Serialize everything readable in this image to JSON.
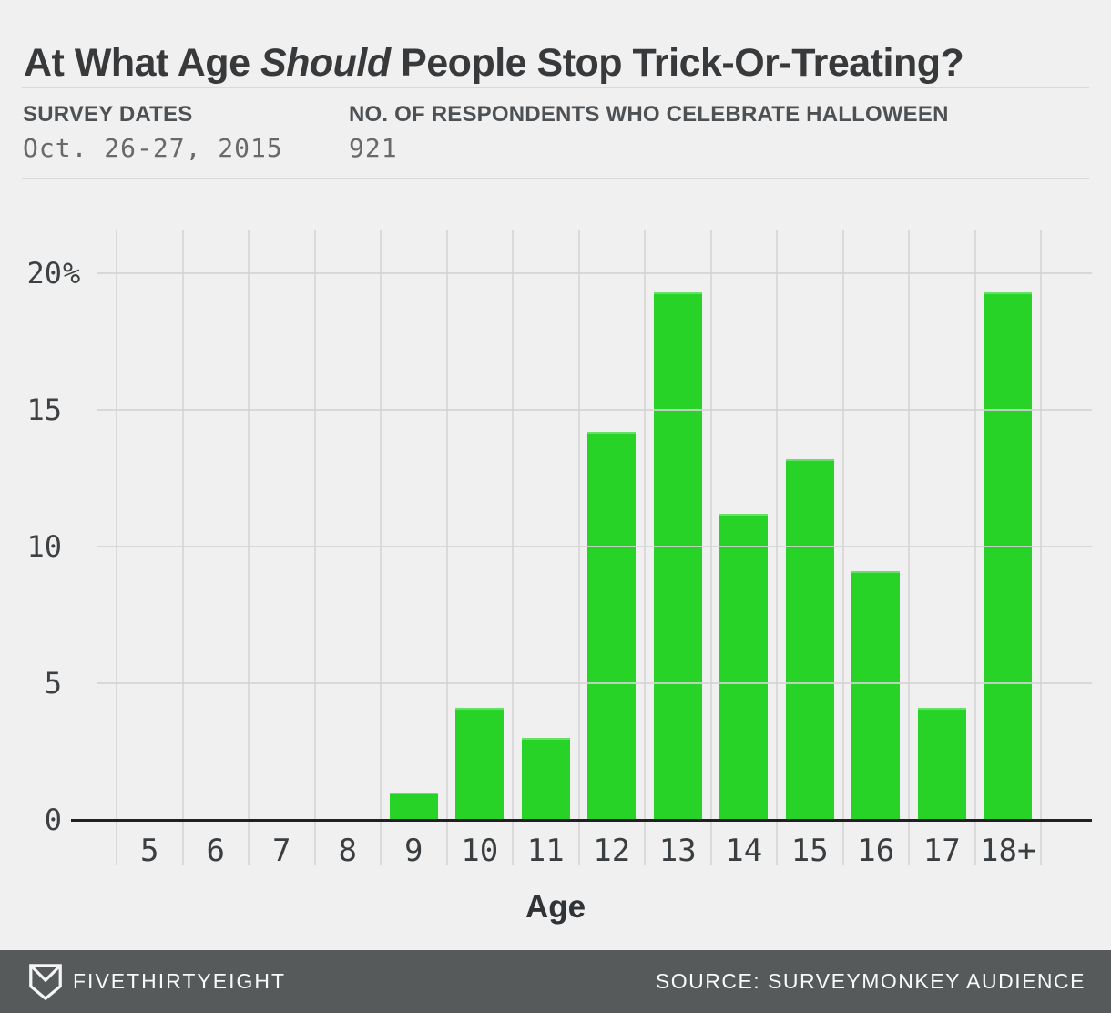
{
  "header": {
    "title_prefix": "At What Age ",
    "title_emphasis": "Should",
    "title_suffix": " People Stop Trick-Or-Treating?",
    "meta": [
      {
        "label": "SURVEY DATES",
        "value": "Oct. 26-27, 2015"
      },
      {
        "label": "NO. OF RESPONDENTS WHO CELEBRATE HALLOWEEN",
        "value": "921"
      }
    ]
  },
  "chart_data": {
    "type": "bar",
    "title": "At What Age Should People Stop Trick-Or-Treating?",
    "categories": [
      "5",
      "6",
      "7",
      "8",
      "9",
      "10",
      "11",
      "12",
      "13",
      "14",
      "15",
      "16",
      "17",
      "18+"
    ],
    "values": [
      0,
      0,
      0,
      0,
      1,
      4.1,
      3,
      14.2,
      19.3,
      11.2,
      13.2,
      9.1,
      4.1,
      19.3
    ],
    "xlabel": "Age",
    "ylabel": "",
    "yticks": [
      0,
      5,
      10,
      15,
      20
    ],
    "ytick_labels": [
      "0",
      "5",
      "10",
      "15",
      "20%"
    ],
    "ylim": [
      0,
      21.5
    ],
    "grid": true,
    "legend": "none",
    "units": "percent of respondents"
  },
  "footer": {
    "brand": "FIVETHIRTYEIGHT",
    "source": "SOURCE: SURVEYMONKEY AUDIENCE"
  },
  "icons": {
    "brand_logo": "fivethirtyeight-fox-crest-icon"
  },
  "colors": {
    "background": "#f0f0f0",
    "bar": "#26d326",
    "gridline": "#dadada",
    "axis_line": "#212121",
    "title_text": "#37393b",
    "meta_label_text": "#4d5154",
    "meta_value_text": "#67696a",
    "tick_text": "#3a3e40",
    "footer_background": "#565a5b",
    "footer_text": "#fafafa"
  }
}
